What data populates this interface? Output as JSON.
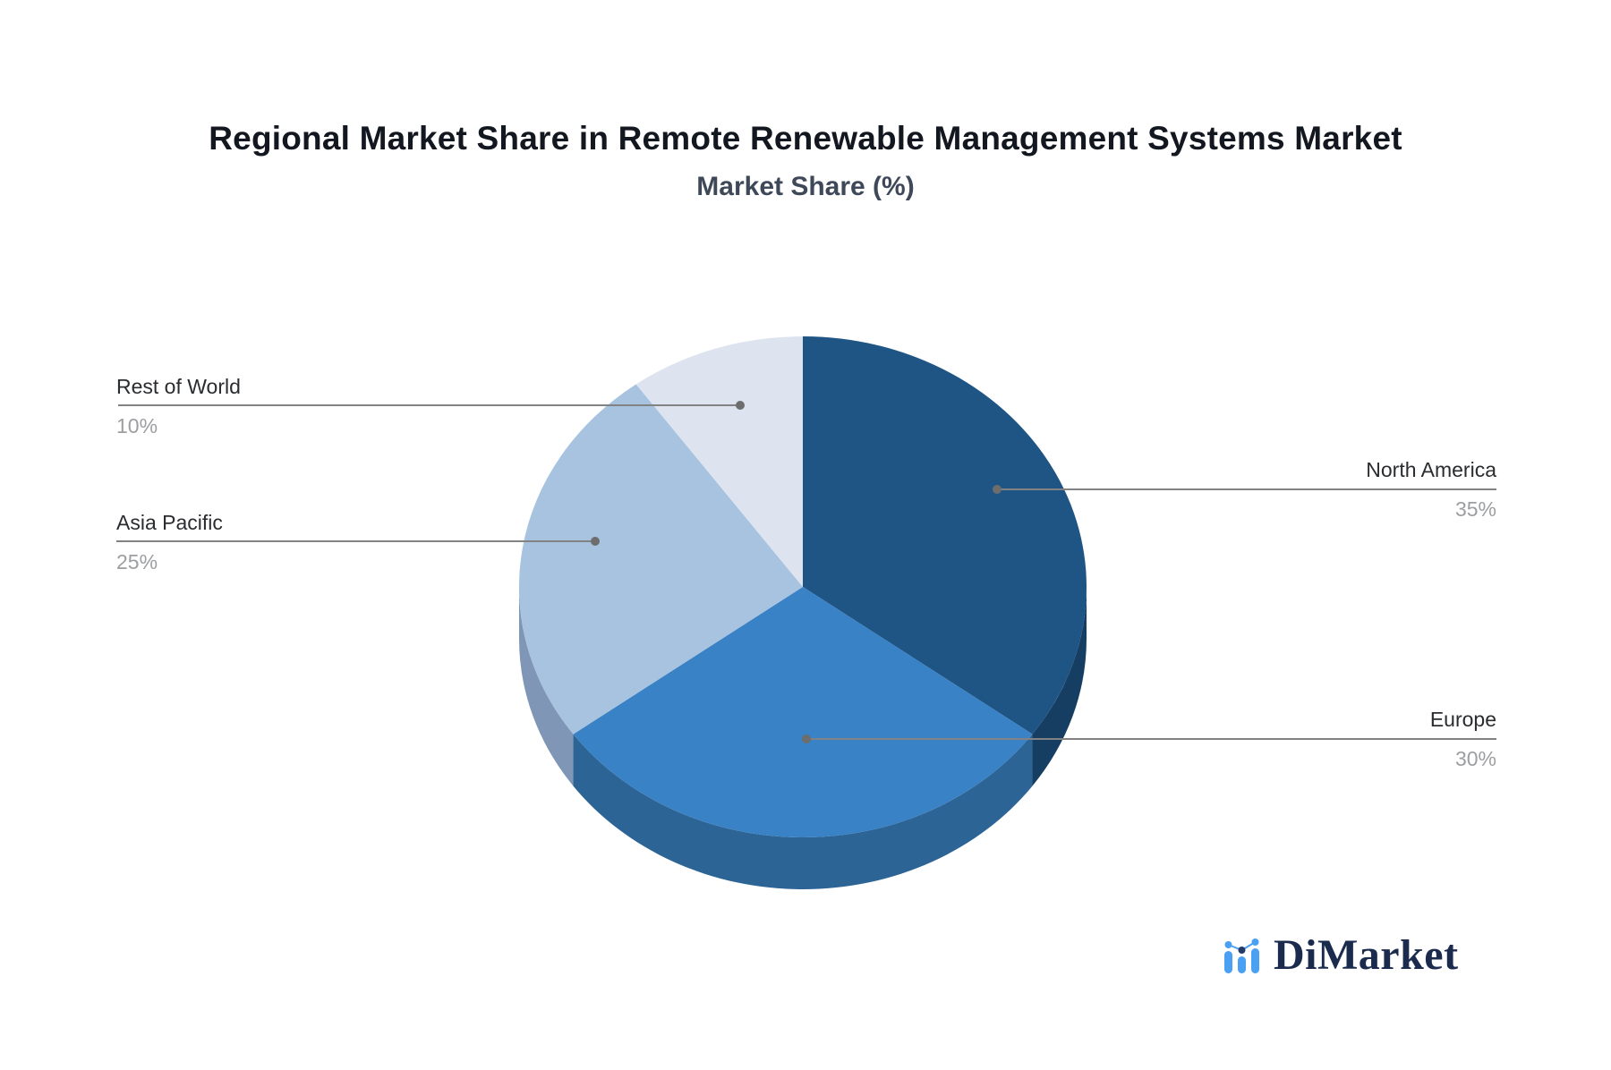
{
  "header": {
    "title": "Regional Market Share in Remote Renewable Management Systems Market",
    "subtitle": "Market Share (%)"
  },
  "chart_data": {
    "type": "pie",
    "style": "3d",
    "title": "Regional Market Share in Remote Renewable Management Systems Market",
    "subtitle": "Market Share (%)",
    "unit": "%",
    "start_angle_deg": 0,
    "direction": "clockwise",
    "slices": [
      {
        "label": "North America",
        "value": 35,
        "display_value": "35%",
        "color": "#1e5585",
        "side_color": "#163e63"
      },
      {
        "label": "Europe",
        "value": 30,
        "display_value": "30%",
        "color": "#3a82c6",
        "side_color": "#2d6496"
      },
      {
        "label": "Asia Pacific",
        "value": 25,
        "display_value": "25%",
        "color": "#a7c3e0",
        "side_color": "#8096b6"
      },
      {
        "label": "Rest of World",
        "value": 10,
        "display_value": "10%",
        "color": "#dde4ef",
        "side_color": "#b8c4d6"
      }
    ]
  },
  "callout_colors": {
    "name_text": "#2a2c2f",
    "value_text": "#9c9ea1",
    "line": "#828282",
    "dot": "#6d6d6d"
  },
  "branding": {
    "logo_text": "DiMarket",
    "logo_bar_color": "#4aa0f2",
    "logo_mid_dot_color": "#253a66",
    "logo_text_color": "#1b2b4d"
  }
}
